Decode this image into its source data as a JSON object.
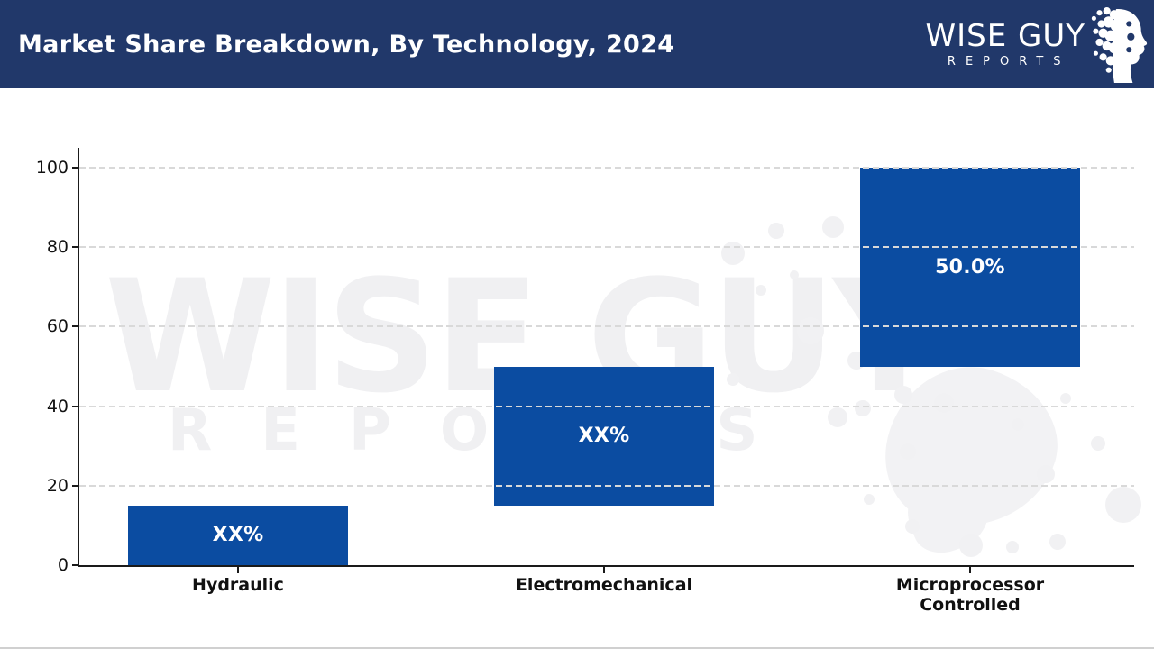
{
  "header": {
    "title": "Market Share Breakdown, By Technology, 2024",
    "logo": {
      "name": "WISE GUY",
      "sub": "REPORTS"
    },
    "background_color": "#21386a"
  },
  "watermark": {
    "line1": "WISE GUY",
    "line2": "REPORTS"
  },
  "chart_data": {
    "type": "bar",
    "subtype": "waterfall",
    "title": "Market Share Breakdown, By Technology, 2024",
    "categories": [
      "Hydraulic",
      "Electromechanical",
      "Microprocessor\nControlled"
    ],
    "bars": [
      {
        "category": "Hydraulic",
        "start": 0,
        "end": 15,
        "label": "XX%"
      },
      {
        "category": "Electromechanical",
        "start": 15,
        "end": 50,
        "label": "XX%"
      },
      {
        "category": "Microprocessor\nControlled",
        "start": 50,
        "end": 100,
        "label": "50.0%"
      }
    ],
    "yticks": [
      0,
      20,
      40,
      60,
      80,
      100
    ],
    "ylim": [
      0,
      105
    ],
    "xlabel": "",
    "ylabel": "",
    "grid": "horizontal-dashed",
    "legend": "none",
    "bar_color": "#0b4ca1",
    "bar_label_color": "#ffffff",
    "axis_color": "#1a1a1a",
    "gridline_color": "#d9d9d9"
  }
}
